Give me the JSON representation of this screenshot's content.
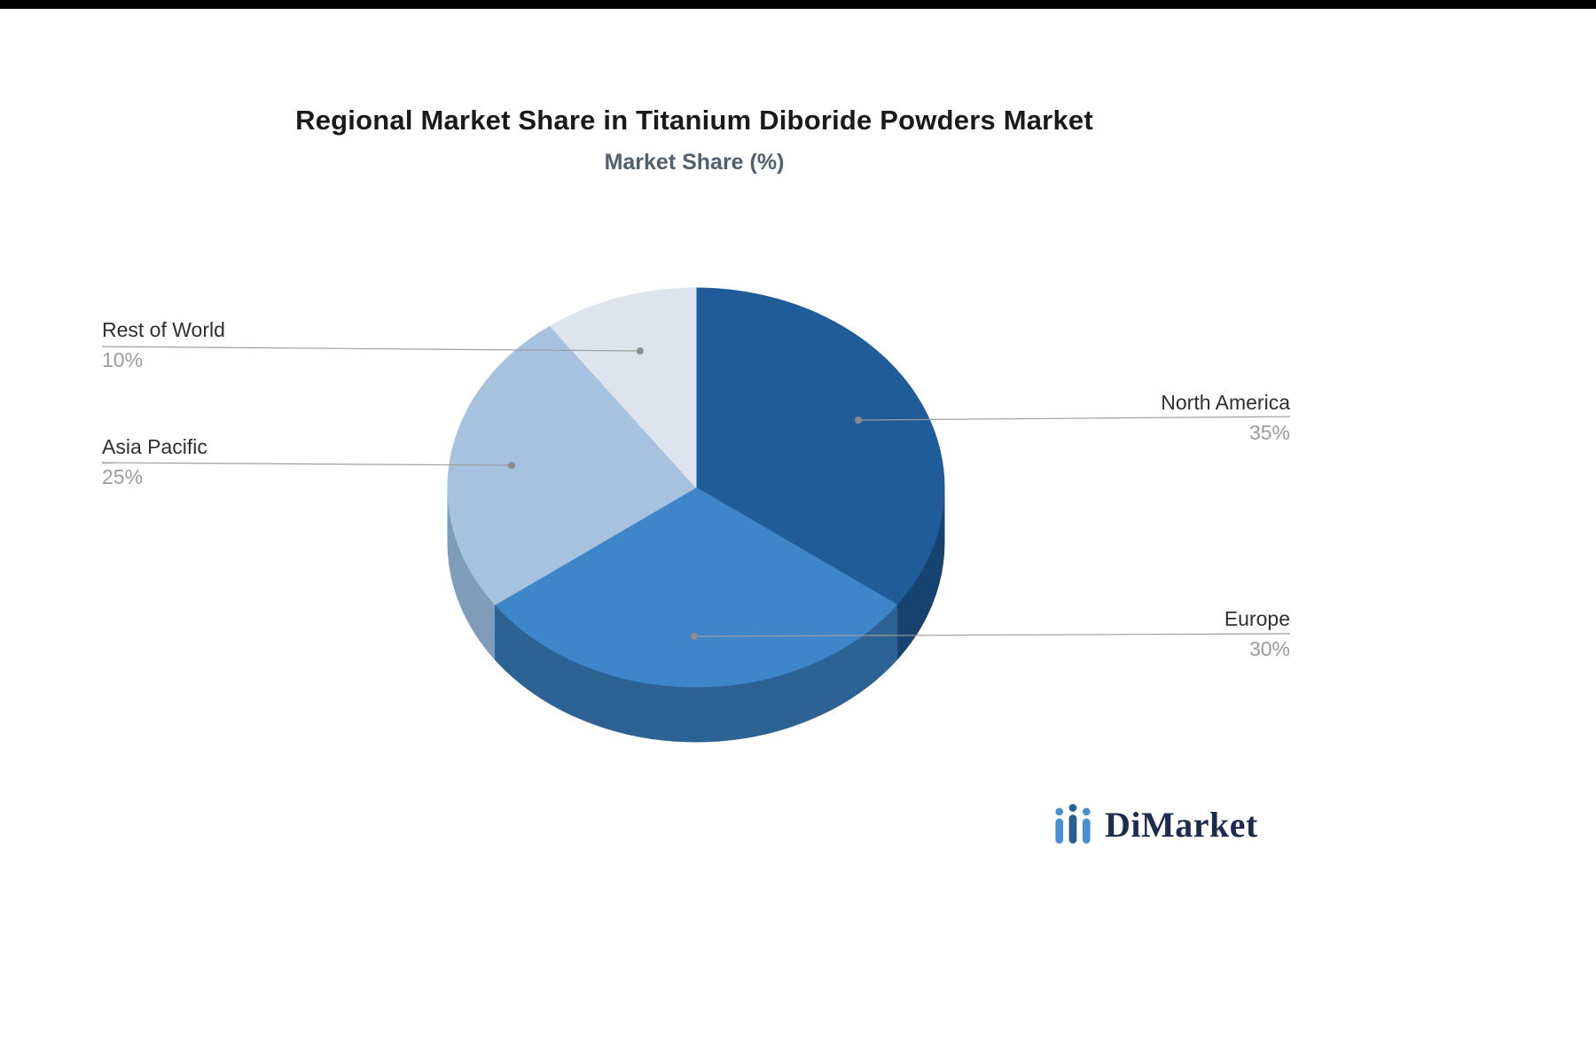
{
  "page": {
    "background": "#ffffff",
    "top_bar_color": "#000000"
  },
  "chart_data": {
    "type": "pie",
    "title": "Regional Market Share in Titanium Diboride Powders Market",
    "subtitle": "Market Share (%)",
    "labels": [
      "North America",
      "Europe",
      "Asia Pacific",
      "Rest of World"
    ],
    "values": [
      35,
      30,
      25,
      10
    ],
    "display_percents": [
      "35%",
      "30%",
      "25%",
      "10%"
    ],
    "colors": [
      "#1f5c99",
      "#3e86c9",
      "#a6c2de",
      "#dde4ee"
    ],
    "side_colors": [
      "#16436f",
      "#2c6394",
      "#7f9cba",
      "#b9c6d6"
    ],
    "start_angle_deg": -90,
    "direction": "clockwise",
    "depth_3d": true,
    "legend_position": "none",
    "label_line_color": "#9e9e9e",
    "label_dot_color": "#8c8c8c",
    "name_color": "#2f2f2f",
    "percent_color": "#9b9b9b"
  },
  "logo": {
    "text": "DiMarket",
    "icon": "bar-chart-dots-icon",
    "text_color": "#1d2b4e",
    "icon_blue": "#4a8fd3",
    "icon_dark": "#2b5e8f"
  }
}
